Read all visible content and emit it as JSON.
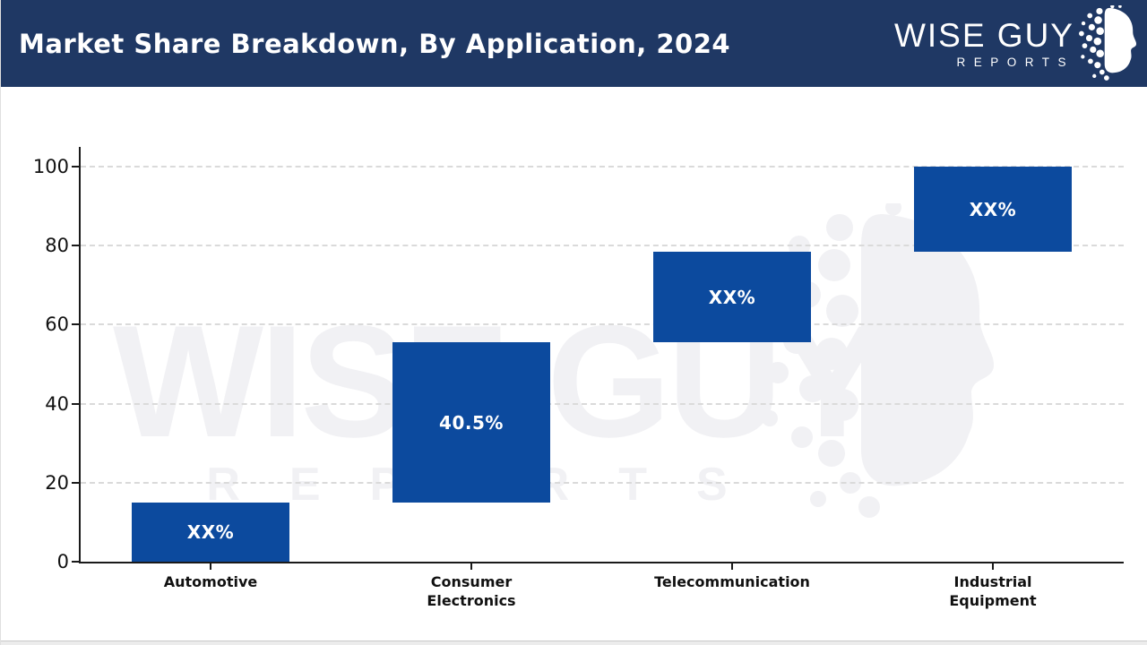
{
  "header": {
    "title": "Market Share Breakdown, By Application, 2024",
    "logo": {
      "line1": "WISE GUY",
      "line2": "REPORTS"
    }
  },
  "watermark": {
    "line1": "WISE GUY",
    "line2": "REPORTS"
  },
  "chart_data": {
    "type": "bar",
    "variant": "floating-range (waterfall style market share breakdown)",
    "title": "Market Share Breakdown, By Application, 2024",
    "categories": [
      "Automotive",
      "Consumer\nElectronics",
      "Telecommunication",
      "Industrial\nEquipment"
    ],
    "series": [
      {
        "name": "Market share (%)",
        "ranges": [
          [
            0,
            15
          ],
          [
            15,
            55.5
          ],
          [
            55.5,
            78.5
          ],
          [
            78.5,
            100
          ]
        ],
        "bar_labels": [
          "XX%",
          "40.5%",
          "XX%",
          "XX%"
        ]
      }
    ],
    "xlabel": "",
    "ylabel": "",
    "ylim": [
      0,
      105
    ],
    "yticks": [
      0,
      20,
      40,
      60,
      80,
      100
    ],
    "grid": "horizontal dashed",
    "legend": "none"
  },
  "colors": {
    "header_bg": "#1f3864",
    "bar_fill": "#0c4a9e",
    "bar_label_text": "#ffffff",
    "gridline": "#dadada",
    "axis": "#1a1a1a",
    "watermark": "#f1f1f4",
    "title_text": "#ffffff"
  }
}
